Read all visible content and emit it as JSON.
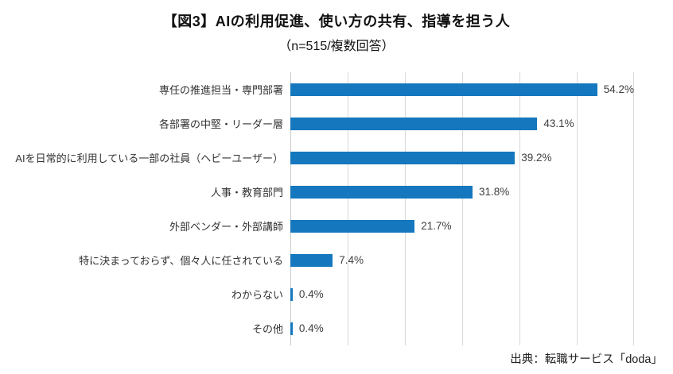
{
  "chart_data": {
    "type": "bar",
    "orientation": "horizontal",
    "title": "【図3】AIの利用促進、使い方の共有、指導を担う人",
    "subtitle": "（n=515/複数回答）",
    "categories": [
      "専任の推進担当・専門部署",
      "各部署の中堅・リーダー層",
      "AIを日常的に利用している一部の社員（ヘビーユーザー）",
      "人事・教育部門",
      "外部ベンダー・外部講師",
      "特に決まっておらず、個々人に任されている",
      "わからない",
      "その他"
    ],
    "values": [
      54.2,
      43.1,
      39.2,
      31.8,
      21.7,
      7.4,
      0.4,
      0.4
    ],
    "value_labels": [
      "54.2%",
      "43.1%",
      "39.2%",
      "31.8%",
      "21.7%",
      "7.4%",
      "0.4%",
      "0.4%"
    ],
    "xlim": [
      0,
      60
    ],
    "gridline_step": 10,
    "grid": true,
    "legend": "none",
    "bar_color": "#1577be",
    "gridline_color": "#d9d9d9",
    "source": "出典：転職サービス「doda」"
  }
}
